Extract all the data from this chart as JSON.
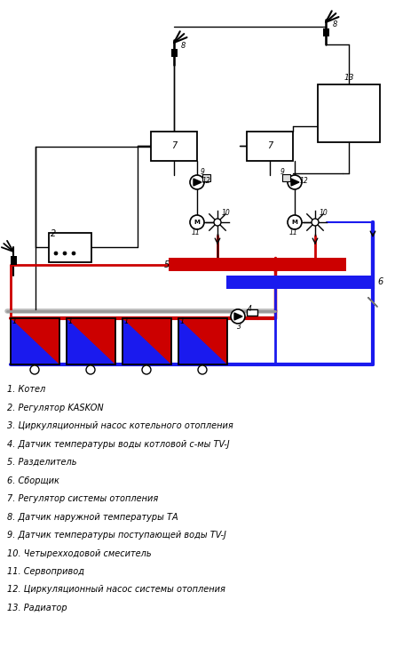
{
  "legend_items": [
    "1. Котел",
    "2. Регулятор KASKON",
    "3. Циркуляционный насос котельного отопления",
    "4. Датчик температуры воды котловой с-мы TV-J",
    "5. Разделитель",
    "6. Сборщик",
    "7. Регулятор системы отопления",
    "8. Датчик наружной температуры ТА",
    "9. Датчик температуры поступающей воды TV-J",
    "10. Четырехходовой смеситель",
    "11. Сервопривод",
    "12. Циркуляционный насос системы отопления",
    "13. Радиатор"
  ],
  "bg_color": "#ffffff",
  "line_color": "#000000",
  "red_color": "#cc0000",
  "blue_color": "#1a1aee",
  "gray_color": "#999999"
}
